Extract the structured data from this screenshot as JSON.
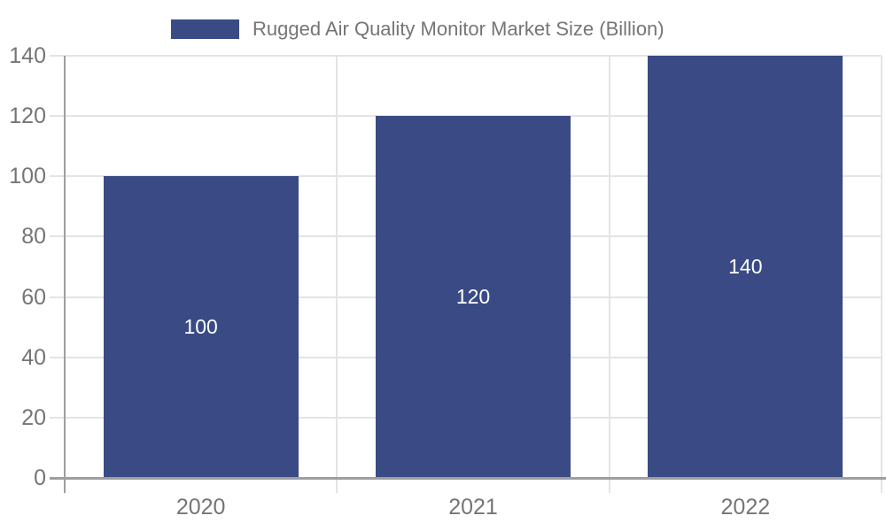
{
  "chart_data": {
    "type": "bar",
    "title": "Rugged Air Quality Monitor Market Size (Billion)",
    "legend": {
      "label": "Rugged Air Quality Monitor Market Size (Billion)",
      "position": "top"
    },
    "categories": [
      "2020",
      "2021",
      "2022"
    ],
    "values": [
      100,
      120,
      140
    ],
    "value_labels": [
      "100",
      "120",
      "140"
    ],
    "xlabel": "",
    "ylabel": "",
    "ylim": [
      0,
      140
    ],
    "yticks": [
      0,
      20,
      40,
      60,
      80,
      100,
      120,
      140
    ],
    "grid": true,
    "colors": {
      "bar": "#3A4A85",
      "axis_text": "#757575",
      "value_label_text": "#FFFFFF",
      "gridline": "#E4E4E4",
      "axis_line": "#9E9E9E",
      "background": "#FFFFFF"
    }
  }
}
